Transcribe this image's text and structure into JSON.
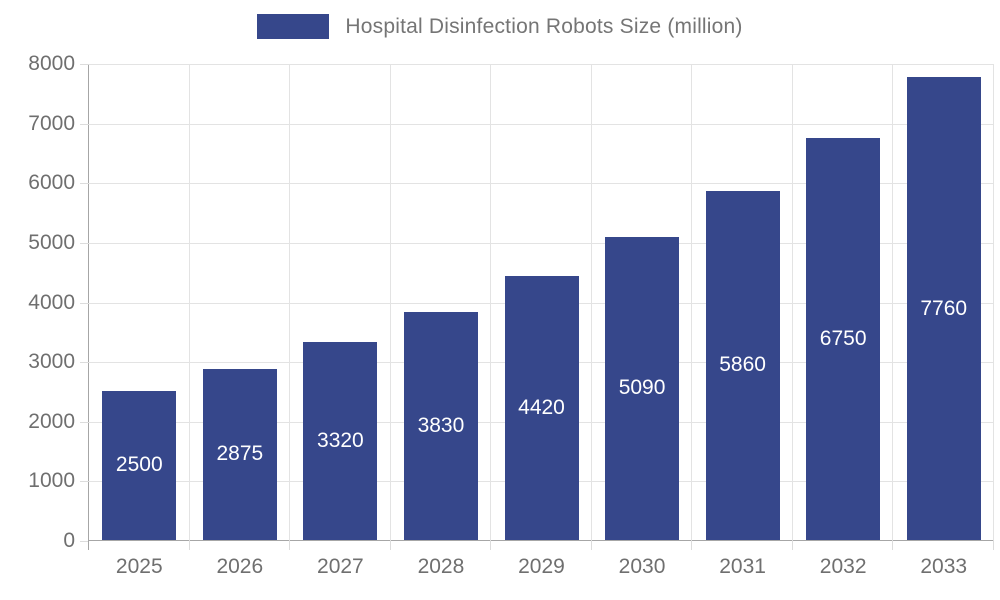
{
  "legend": {
    "label": "Hospital Disinfection Robots Size (million)"
  },
  "colors": {
    "bar": "#36478B",
    "axis_line": "#a6a6a6",
    "gridline": "#e3e3e3",
    "tick": "#dcdcdc",
    "axis_text": "#6f6f6f",
    "legend_text": "#757575",
    "bar_value_text": "#ffffff"
  },
  "chart_data": {
    "type": "bar",
    "title": "Hospital Disinfection Robots Size (million)",
    "categories": [
      "2025",
      "2026",
      "2027",
      "2028",
      "2029",
      "2030",
      "2031",
      "2032",
      "2033"
    ],
    "values": [
      2500,
      2875,
      3320,
      3830,
      4420,
      5090,
      5860,
      6750,
      7760
    ],
    "series": [
      {
        "name": "Hospital Disinfection Robots Size (million)",
        "values": [
          2500,
          2875,
          3320,
          3830,
          4420,
          5090,
          5860,
          6750,
          7760
        ]
      }
    ],
    "xlabel": "",
    "ylabel": "",
    "ylim": [
      0,
      8000
    ],
    "yticks": [
      0,
      1000,
      2000,
      3000,
      4000,
      5000,
      6000,
      7000,
      8000
    ],
    "grid": true,
    "legend_position": "top",
    "value_labels": "inside-center"
  }
}
